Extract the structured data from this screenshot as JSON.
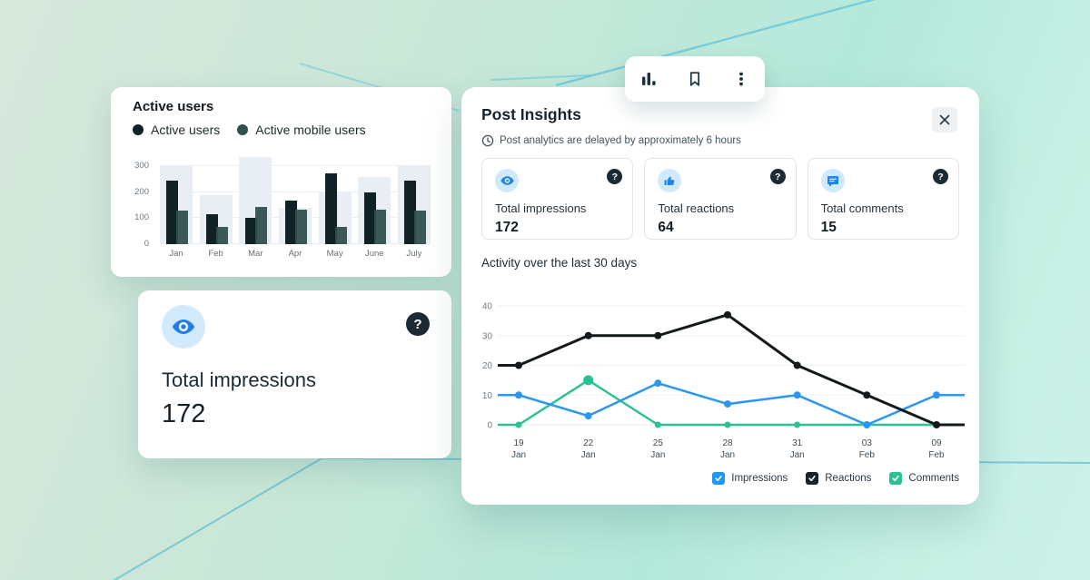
{
  "glyphs": {
    "help": "?"
  },
  "toolbar": {
    "icons": [
      "bar-chart-icon",
      "bookmark-icon",
      "overflow-menu-icon"
    ]
  },
  "active_users_card": {
    "title": "Active users",
    "legend": [
      {
        "label": "Active users",
        "color": "#102225"
      },
      {
        "label": "Active mobile users",
        "color": "#30504d"
      }
    ]
  },
  "impressions_card": {
    "label": "Total impressions",
    "value": "172"
  },
  "post_insights": {
    "title": "Post Insights",
    "notice": "Post analytics are delayed by approximately 6 hours",
    "stats": [
      {
        "icon": "eye-icon",
        "label": "Total impressions",
        "value": "172"
      },
      {
        "icon": "thumbs-up-icon",
        "label": "Total reactions",
        "value": "64"
      },
      {
        "icon": "comment-icon",
        "label": "Total comments",
        "value": "15"
      }
    ],
    "activity_title": "Activity over the last 30 days",
    "legend": [
      {
        "label": "Impressions",
        "color": "#2196f3"
      },
      {
        "label": "Reactions",
        "color": "#19242a"
      },
      {
        "label": "Comments",
        "color": "#2cc194"
      }
    ]
  },
  "chart_data": [
    {
      "type": "bar",
      "title": "Active users",
      "categories": [
        "Jan",
        "Feb",
        "Mar",
        "Apr",
        "May",
        "June",
        "July"
      ],
      "series": [
        {
          "name": "Active users",
          "color": "#102225",
          "values": [
            245,
            115,
            100,
            170,
            275,
            200,
            245
          ]
        },
        {
          "name": "Active mobile users",
          "color": "#30504d",
          "values": [
            130,
            65,
            145,
            135,
            65,
            135,
            130
          ]
        }
      ],
      "background_bars": {
        "color": "#e9eef4",
        "values": [
          305,
          190,
          335,
          140,
          205,
          260,
          305
        ]
      },
      "yticks": [
        0,
        100,
        200,
        300
      ],
      "ylim": [
        0,
        340
      ],
      "xlabel": "",
      "ylabel": "",
      "legend_position": "top"
    },
    {
      "type": "line",
      "title": "Activity over the last 30 days",
      "x": [
        "19 Jan",
        "22 Jan",
        "25 Jan",
        "28 Jan",
        "31 Jan",
        "03 Feb",
        "09 Feb"
      ],
      "series": [
        {
          "name": "Impressions",
          "color": "#2b97f1",
          "values": [
            10,
            3,
            14,
            7,
            10,
            0,
            10
          ]
        },
        {
          "name": "Reactions",
          "color": "#14191c",
          "values": [
            20,
            30,
            30,
            37,
            20,
            10,
            0
          ]
        },
        {
          "name": "Comments",
          "color": "#2cc194",
          "values": [
            0,
            15,
            0,
            0,
            0,
            0,
            0
          ]
        }
      ],
      "yticks": [
        0,
        10,
        20,
        30,
        40
      ],
      "ylim": [
        0,
        40
      ],
      "grid": true,
      "legend_position": "bottom-right"
    }
  ]
}
